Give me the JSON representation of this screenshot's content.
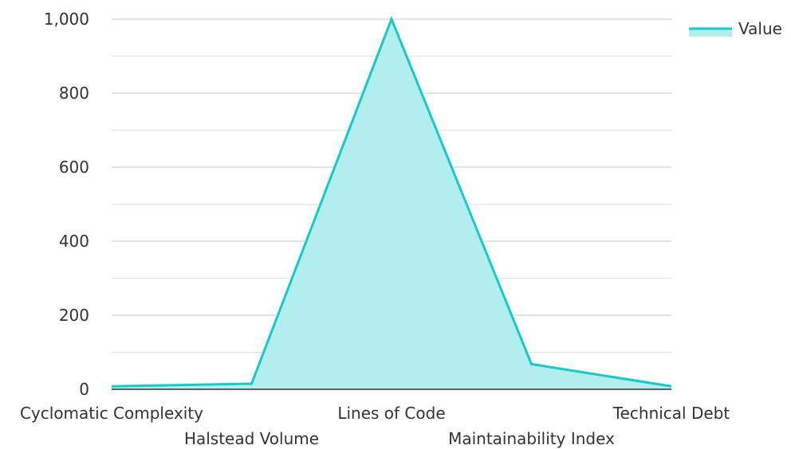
{
  "chart_data": {
    "type": "area",
    "categories": [
      "Cyclomatic Complexity",
      "Halstead Volume",
      "Lines of Code",
      "Maintainability Index",
      "Technical Debt"
    ],
    "series": [
      {
        "name": "Value",
        "values": [
          8,
          15,
          1000,
          68,
          8
        ]
      }
    ],
    "ylim": [
      0,
      1000
    ],
    "yticks": [
      0,
      200,
      400,
      600,
      800,
      1000
    ],
    "ytick_labels": [
      "0",
      "200",
      "400",
      "600",
      "800",
      "1,000"
    ],
    "grid": true,
    "legend": "top-right",
    "colors": {
      "line": "#17c9c9",
      "fill": "#b3eeee",
      "grid": "#cccccc",
      "axis": "#333333"
    }
  }
}
